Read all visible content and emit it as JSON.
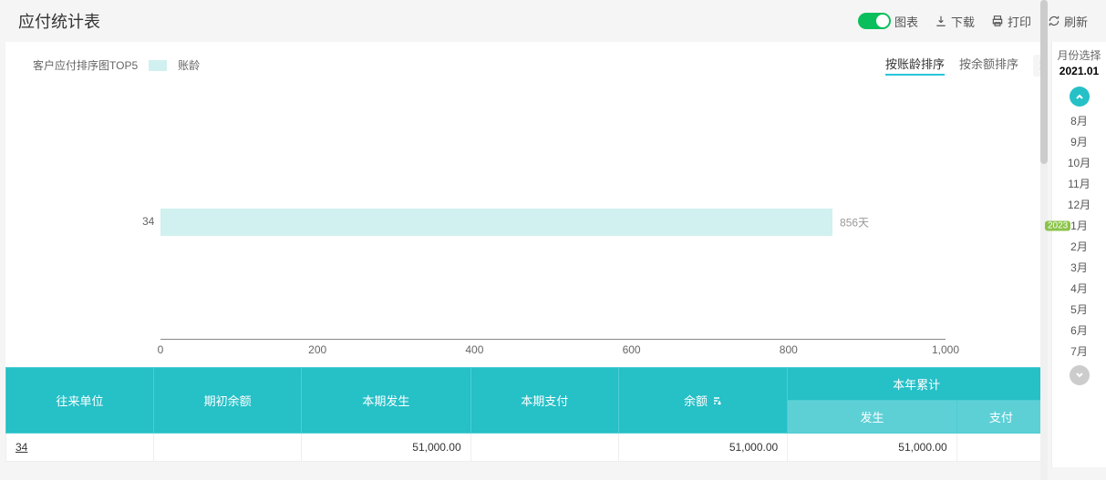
{
  "header": {
    "title": "应付统计表",
    "toggle_label": "图表",
    "download_label": "下载",
    "print_label": "打印",
    "refresh_label": "刷新"
  },
  "chart": {
    "type": "bar-horizontal",
    "title": "客户应付排序图TOP5",
    "legend_label": "账龄",
    "legend_color": "#d1f0f0",
    "sort_tabs": {
      "by_age": "按账龄排序",
      "by_balance": "按余额排序"
    },
    "active_sort": "by_age",
    "y_category": "34",
    "bar_value": 856,
    "bar_value_label": "856天",
    "bar_color": "#d1f0f0",
    "x_ticks": [
      "0",
      "200",
      "400",
      "600",
      "800",
      "1,000"
    ],
    "x_min": 0,
    "x_max": 1000,
    "background_color": "#ffffff",
    "axis_color": "#888888",
    "text_color": "#666666"
  },
  "table": {
    "header_bg": "#26c0c7",
    "sub_header_bg": "#5dd0d6",
    "columns": {
      "unit": "往来单位",
      "opening": "期初余额",
      "current_occur": "本期发生",
      "current_pay": "本期支付",
      "balance": "余额",
      "year_total": "本年累计",
      "year_occur": "发生",
      "year_pay": "支付"
    },
    "rows": [
      {
        "unit": "34",
        "opening": "",
        "current_occur": "51,000.00",
        "current_pay": "",
        "balance": "51,000.00",
        "year_occur": "51,000.00",
        "year_pay": ""
      }
    ]
  },
  "side": {
    "title": "月份选择",
    "current": "2021.01",
    "year_badge": "2023",
    "months": [
      "8月",
      "9月",
      "10月",
      "11月",
      "12月",
      "1月",
      "2月",
      "3月",
      "4月",
      "5月",
      "6月",
      "7月"
    ],
    "badge_month_index": 5
  }
}
